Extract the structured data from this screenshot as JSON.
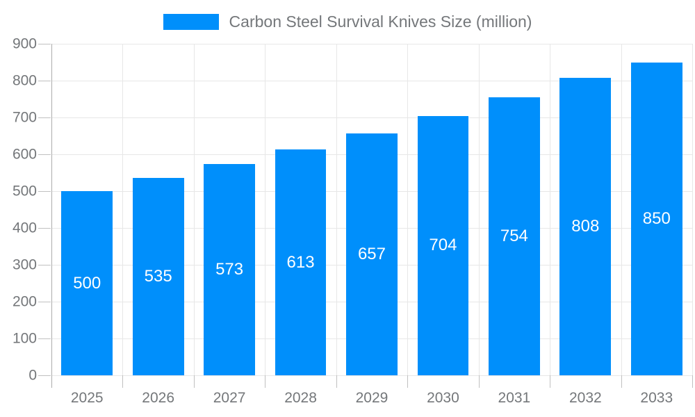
{
  "chart_data": {
    "type": "bar",
    "title": "Carbon Steel Survival Knives Size (million)",
    "categories": [
      "2025",
      "2026",
      "2027",
      "2028",
      "2029",
      "2030",
      "2031",
      "2032",
      "2033"
    ],
    "values": [
      500,
      535,
      573,
      613,
      657,
      704,
      754,
      808,
      850
    ],
    "xlabel": "",
    "ylabel": "",
    "ylim": [
      0,
      900
    ],
    "ytick_step": 100,
    "ytick_labels": [
      "0",
      "100",
      "200",
      "300",
      "400",
      "500",
      "600",
      "700",
      "800",
      "900"
    ],
    "grid": "horizontal and vertical",
    "legend_position": "top-center",
    "colors": {
      "bar": "#008ffb",
      "bar_value_label": "#ffffff",
      "axis_text": "#74777a",
      "grid_line": "#e7e7e7",
      "axis_line": "#ababab",
      "tick": "#c0c0c0",
      "background": "#ffffff"
    }
  }
}
